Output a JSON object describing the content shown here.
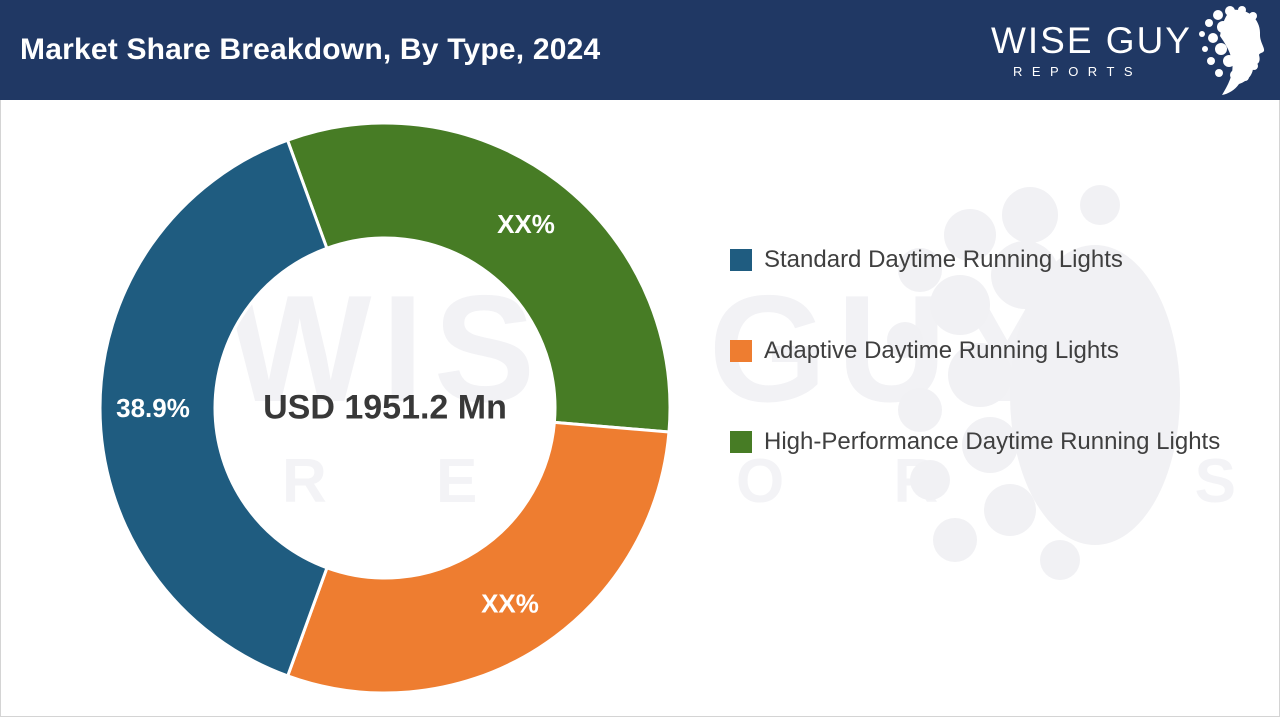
{
  "header": {
    "title": "Market Share Breakdown, By Type, 2024",
    "bg_color": "#203864",
    "logo": {
      "line1": "WISE GUY",
      "line2": "REPORTS"
    }
  },
  "chart_data": {
    "type": "donut",
    "center_label": "USD 1951.2 Mn",
    "start_angle_deg": 340,
    "inner_radius_ratio": 0.596,
    "legend_position": "right",
    "segments": [
      {
        "name": "High-Performance Daytime Running Lights",
        "display_label": "XX%",
        "value_pct": 31.9,
        "color": "#477C25"
      },
      {
        "name": "Adaptive Daytime Running Lights",
        "display_label": "XX%",
        "value_pct": 29.2,
        "color": "#EE7D30"
      },
      {
        "name": "Standard Daytime Running Lights",
        "display_label": "38.9%",
        "value_pct": 38.9,
        "color": "#1F5C80"
      }
    ]
  },
  "legend": {
    "items": [
      {
        "label": "Standard Daytime Running Lights",
        "color": "#1F5C80"
      },
      {
        "label": "Adaptive Daytime Running Lights",
        "color": "#EE7D30"
      },
      {
        "label": "High-Performance Daytime Running Lights",
        "color": "#477C25"
      }
    ]
  },
  "watermark": {
    "line1": "WISE GUY",
    "line2": "R E P O R T S"
  },
  "colors": {
    "header_bg": "#203864",
    "frame_border": "#d4d4d4",
    "center_text": "#383838",
    "legend_text": "#3f3f3f",
    "watermark": "#f2f2f5"
  }
}
